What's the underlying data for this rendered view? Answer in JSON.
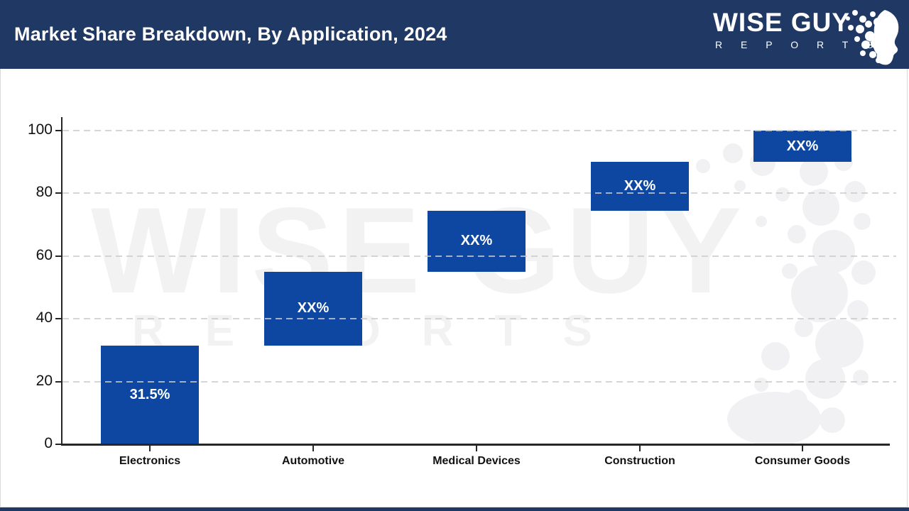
{
  "header": {
    "title": "Market Share Breakdown, By Application, 2024",
    "bg_color": "#1f3864",
    "logo": {
      "line1": "WISE GUY",
      "line2": "R E P O R T S"
    }
  },
  "watermark": {
    "line1": "WISE GUY",
    "line2": "REPORTS"
  },
  "chart_data": {
    "type": "bar",
    "subtype": "waterfall",
    "title": "Market Share Breakdown, By Application, 2024",
    "categories": [
      "Electronics",
      "Automotive",
      "Medical Devices",
      "Construction",
      "Consumer Goods"
    ],
    "series": [
      {
        "name": "Market Share (%)",
        "values": [
          31.5,
          23.5,
          19.5,
          15.5,
          10
        ]
      }
    ],
    "segments": [
      {
        "start": 0,
        "end": 31.5
      },
      {
        "start": 31.5,
        "end": 55
      },
      {
        "start": 55,
        "end": 74.5
      },
      {
        "start": 74.5,
        "end": 90
      },
      {
        "start": 90,
        "end": 100
      }
    ],
    "bar_labels": [
      "31.5%",
      "XX%",
      "XX%",
      "XX%",
      "XX%"
    ],
    "bar_color": "#0d47a1",
    "label_color": "#ffffff",
    "xlabel": "",
    "ylabel": "",
    "ylim": [
      0,
      105
    ],
    "yticks": [
      0,
      20,
      40,
      60,
      80,
      100
    ],
    "grid": "horizontal-dashed",
    "legend": "none"
  }
}
